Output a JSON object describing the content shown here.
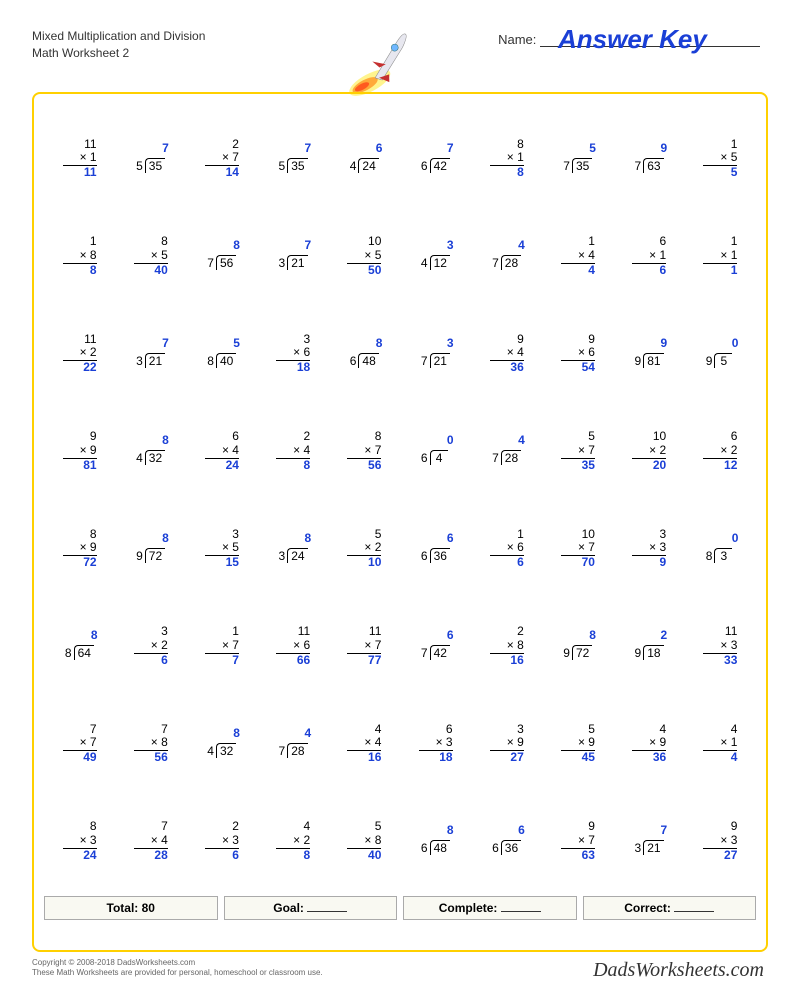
{
  "colors": {
    "answer": "#1a3fd6",
    "frame": "#ffd000",
    "text": "#333333",
    "background": "#ffffff"
  },
  "fonts": {
    "body_size": 12,
    "answer_key_size": 26,
    "title_size": 12
  },
  "header": {
    "title_line1": "Mixed Multiplication and Division",
    "title_line2": "Math Worksheet 2",
    "name_label": "Name:",
    "answer_key": "Answer Key"
  },
  "footer": {
    "total_label": "Total:",
    "total_value": "80",
    "goal_label": "Goal:",
    "complete_label": "Complete:",
    "correct_label": "Correct:"
  },
  "copyright": {
    "line1": "Copyright © 2008-2018 DadsWorksheets.com",
    "line2": "These Math Worksheets are provided for personal, homeschool or classroom use."
  },
  "brand": "DadsWorksheets.com",
  "problems": [
    [
      {
        "t": "m",
        "a": 11,
        "b": 1,
        "r": 11
      },
      {
        "t": "d",
        "dvr": 5,
        "dvd": 35,
        "q": 7
      },
      {
        "t": "m",
        "a": 2,
        "b": 7,
        "r": 14
      },
      {
        "t": "d",
        "dvr": 5,
        "dvd": 35,
        "q": 7
      },
      {
        "t": "d",
        "dvr": 4,
        "dvd": 24,
        "q": 6
      },
      {
        "t": "d",
        "dvr": 6,
        "dvd": 42,
        "q": 7
      },
      {
        "t": "m",
        "a": 8,
        "b": 1,
        "r": 8
      },
      {
        "t": "d",
        "dvr": 7,
        "dvd": 35,
        "q": 5
      },
      {
        "t": "d",
        "dvr": 7,
        "dvd": 63,
        "q": 9
      },
      {
        "t": "m",
        "a": 1,
        "b": 5,
        "r": 5
      }
    ],
    [
      {
        "t": "m",
        "a": 1,
        "b": 8,
        "r": 8
      },
      {
        "t": "m",
        "a": 8,
        "b": 5,
        "r": 40
      },
      {
        "t": "d",
        "dvr": 7,
        "dvd": 56,
        "q": 8
      },
      {
        "t": "d",
        "dvr": 3,
        "dvd": 21,
        "q": 7
      },
      {
        "t": "m",
        "a": 10,
        "b": 5,
        "r": 50
      },
      {
        "t": "d",
        "dvr": 4,
        "dvd": 12,
        "q": 3
      },
      {
        "t": "d",
        "dvr": 7,
        "dvd": 28,
        "q": 4
      },
      {
        "t": "m",
        "a": 1,
        "b": 4,
        "r": 4
      },
      {
        "t": "m",
        "a": 6,
        "b": 1,
        "r": 6
      },
      {
        "t": "m",
        "a": 1,
        "b": 1,
        "r": 1
      }
    ],
    [
      {
        "t": "m",
        "a": 11,
        "b": 2,
        "r": 22
      },
      {
        "t": "d",
        "dvr": 3,
        "dvd": 21,
        "q": 7
      },
      {
        "t": "d",
        "dvr": 8,
        "dvd": 40,
        "q": 5
      },
      {
        "t": "m",
        "a": 3,
        "b": 6,
        "r": 18
      },
      {
        "t": "d",
        "dvr": 6,
        "dvd": 48,
        "q": 8
      },
      {
        "t": "d",
        "dvr": 7,
        "dvd": 21,
        "q": 3
      },
      {
        "t": "m",
        "a": 9,
        "b": 4,
        "r": 36
      },
      {
        "t": "m",
        "a": 9,
        "b": 6,
        "r": 54
      },
      {
        "t": "d",
        "dvr": 9,
        "dvd": 81,
        "q": 9
      },
      {
        "t": "d",
        "dvr": 9,
        "dvd": 5,
        "q": 0
      }
    ],
    [
      {
        "t": "m",
        "a": 9,
        "b": 9,
        "r": 81
      },
      {
        "t": "d",
        "dvr": 4,
        "dvd": 32,
        "q": 8
      },
      {
        "t": "m",
        "a": 6,
        "b": 4,
        "r": 24
      },
      {
        "t": "m",
        "a": 2,
        "b": 4,
        "r": 8
      },
      {
        "t": "m",
        "a": 8,
        "b": 7,
        "r": 56
      },
      {
        "t": "d",
        "dvr": 6,
        "dvd": 4,
        "q": 0
      },
      {
        "t": "d",
        "dvr": 7,
        "dvd": 28,
        "q": 4
      },
      {
        "t": "m",
        "a": 5,
        "b": 7,
        "r": 35
      },
      {
        "t": "m",
        "a": 10,
        "b": 2,
        "r": 20
      },
      {
        "t": "m",
        "a": 6,
        "b": 2,
        "r": 12
      }
    ],
    [
      {
        "t": "m",
        "a": 8,
        "b": 9,
        "r": 72
      },
      {
        "t": "d",
        "dvr": 9,
        "dvd": 72,
        "q": 8
      },
      {
        "t": "m",
        "a": 3,
        "b": 5,
        "r": 15
      },
      {
        "t": "d",
        "dvr": 3,
        "dvd": 24,
        "q": 8
      },
      {
        "t": "m",
        "a": 5,
        "b": 2,
        "r": 10
      },
      {
        "t": "d",
        "dvr": 6,
        "dvd": 36,
        "q": 6
      },
      {
        "t": "m",
        "a": 1,
        "b": 6,
        "r": 6
      },
      {
        "t": "m",
        "a": 10,
        "b": 7,
        "r": 70
      },
      {
        "t": "m",
        "a": 3,
        "b": 3,
        "r": 9
      },
      {
        "t": "d",
        "dvr": 8,
        "dvd": 3,
        "q": 0
      }
    ],
    [
      {
        "t": "d",
        "dvr": 8,
        "dvd": 64,
        "q": 8
      },
      {
        "t": "m",
        "a": 3,
        "b": 2,
        "r": 6
      },
      {
        "t": "m",
        "a": 1,
        "b": 7,
        "r": 7
      },
      {
        "t": "m",
        "a": 11,
        "b": 6,
        "r": 66
      },
      {
        "t": "m",
        "a": 11,
        "b": 7,
        "r": 77
      },
      {
        "t": "d",
        "dvr": 7,
        "dvd": 42,
        "q": 6
      },
      {
        "t": "m",
        "a": 2,
        "b": 8,
        "r": 16
      },
      {
        "t": "d",
        "dvr": 9,
        "dvd": 72,
        "q": 8
      },
      {
        "t": "d",
        "dvr": 9,
        "dvd": 18,
        "q": 2
      },
      {
        "t": "m",
        "a": 11,
        "b": 3,
        "r": 33
      }
    ],
    [
      {
        "t": "m",
        "a": 7,
        "b": 7,
        "r": 49
      },
      {
        "t": "m",
        "a": 7,
        "b": 8,
        "r": 56
      },
      {
        "t": "d",
        "dvr": 4,
        "dvd": 32,
        "q": 8
      },
      {
        "t": "d",
        "dvr": 7,
        "dvd": 28,
        "q": 4
      },
      {
        "t": "m",
        "a": 4,
        "b": 4,
        "r": 16
      },
      {
        "t": "m",
        "a": 6,
        "b": 3,
        "r": 18
      },
      {
        "t": "m",
        "a": 3,
        "b": 9,
        "r": 27
      },
      {
        "t": "m",
        "a": 5,
        "b": 9,
        "r": 45
      },
      {
        "t": "m",
        "a": 4,
        "b": 9,
        "r": 36
      },
      {
        "t": "m",
        "a": 4,
        "b": 1,
        "r": 4
      }
    ],
    [
      {
        "t": "m",
        "a": 8,
        "b": 3,
        "r": 24
      },
      {
        "t": "m",
        "a": 7,
        "b": 4,
        "r": 28
      },
      {
        "t": "m",
        "a": 2,
        "b": 3,
        "r": 6
      },
      {
        "t": "m",
        "a": 4,
        "b": 2,
        "r": 8
      },
      {
        "t": "m",
        "a": 5,
        "b": 8,
        "r": 40
      },
      {
        "t": "d",
        "dvr": 6,
        "dvd": 48,
        "q": 8
      },
      {
        "t": "d",
        "dvr": 6,
        "dvd": 36,
        "q": 6
      },
      {
        "t": "m",
        "a": 9,
        "b": 7,
        "r": 63
      },
      {
        "t": "d",
        "dvr": 3,
        "dvd": 21,
        "q": 7
      },
      {
        "t": "m",
        "a": 9,
        "b": 3,
        "r": 27
      }
    ]
  ]
}
